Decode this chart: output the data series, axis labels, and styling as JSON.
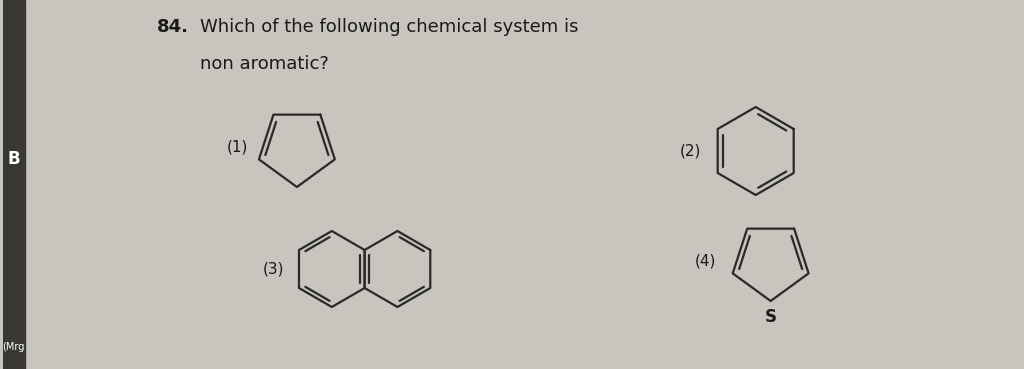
{
  "bg_color": "#c8c4be",
  "paper_color": "#dedad4",
  "question_number": "84.",
  "question_text_line1": "Which of the following chemical system is",
  "question_text_line2": "non aromatic?",
  "option1_label": "(1)",
  "option2_label": "(2)",
  "option3_label": "(3)",
  "option4_label": "(4)",
  "sidebar_text1": "B",
  "sidebar_text2": "(Mrg",
  "text_color": "#1a1a1a",
  "line_color": "#2a2a2a",
  "line_width": 1.6,
  "sidebar_color": "#3a3835"
}
